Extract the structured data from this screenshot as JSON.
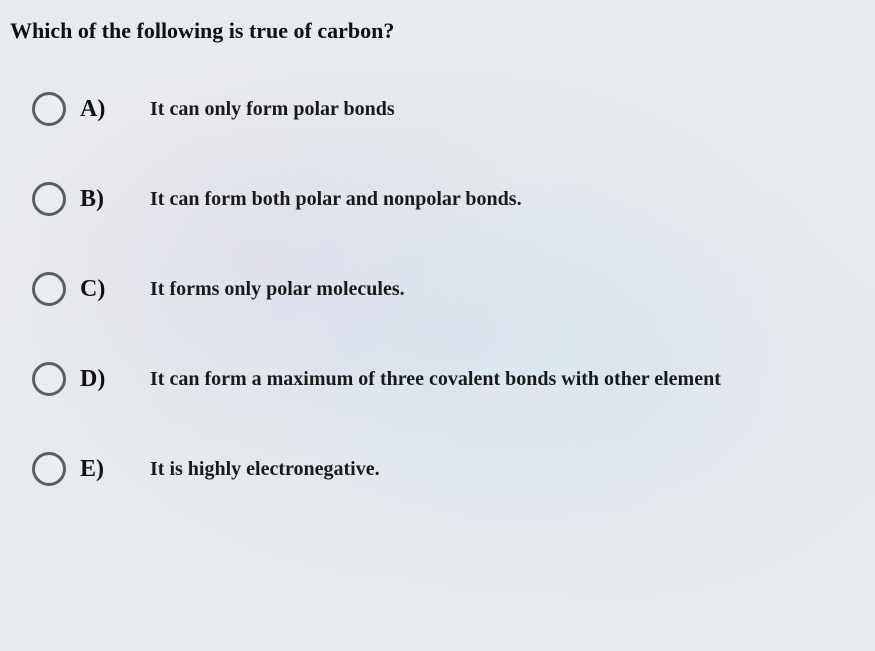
{
  "question": {
    "prompt": "Which of the following is true of carbon?",
    "options": [
      {
        "letter": "A)",
        "text": "It can only form polar bonds"
      },
      {
        "letter": "B)",
        "text": "It can form both polar and nonpolar bonds."
      },
      {
        "letter": "C)",
        "text": "It forms only polar molecules."
      },
      {
        "letter": "D)",
        "text": "It can form a maximum of three covalent bonds with other element"
      },
      {
        "letter": "E)",
        "text": "It is highly electronegative."
      }
    ]
  },
  "style": {
    "background_color": "#e8ebed",
    "text_color": "#1a1a1a",
    "radio_border_color": "#5a5f63",
    "question_fontsize": 22,
    "letter_fontsize": 24,
    "answer_fontsize": 20,
    "font_family": "Georgia, serif"
  }
}
